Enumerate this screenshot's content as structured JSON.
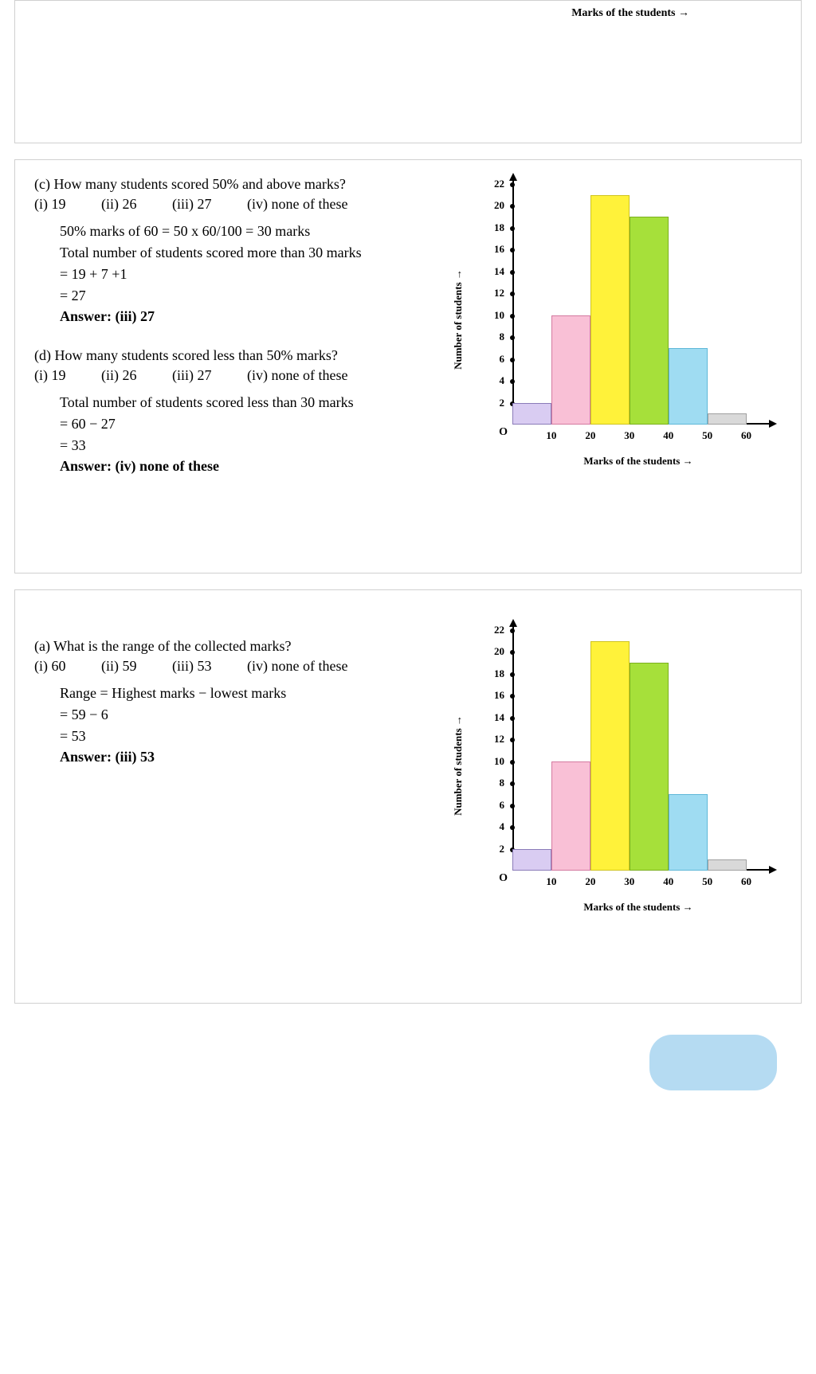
{
  "topLabel": "Marks of the students →",
  "questions": {
    "c": {
      "prompt": "(c) How many students scored 50% and above marks?",
      "options": {
        "i": "(i) 19",
        "ii": "(ii) 26",
        "iii": "(iii) 27",
        "iv": "(iv) none of these"
      },
      "workLines": {
        "l1": "50% marks of 60 = 50 x 60/100 = 30 marks",
        "l2": "Total number of students scored more than 30 marks",
        "l3": "= 19 + 7 +1",
        "l4": "= 27"
      },
      "answer": "Answer: (iii) 27"
    },
    "d": {
      "prompt": "(d) How many students scored less than 50% marks?",
      "options": {
        "i": "(i) 19",
        "ii": "(ii) 26",
        "iii": "(iii) 27",
        "iv": "(iv) none of these"
      },
      "workLines": {
        "l1": "Total number of students scored less than 30 marks",
        "l2": "= 60 − 27",
        "l3": "= 33"
      },
      "answer": "Answer: (iv) none of these"
    },
    "a": {
      "prompt": "(a) What is the range of the collected marks?",
      "options": {
        "i": "(i) 60",
        "ii": "(ii) 59",
        "iii": "(iii) 53",
        "iv": "(iv) none of these"
      },
      "workLines": {
        "l1": "Range = Highest marks − lowest marks",
        "l2": "= 59 − 6",
        "l3": "= 53"
      },
      "answer": "Answer: (iii) 53"
    }
  },
  "chart": {
    "type": "bar",
    "yLabel": "Number of students →",
    "xLabel": "Marks of the students →",
    "yMax": 22,
    "yTicks": [
      2,
      4,
      6,
      8,
      10,
      12,
      14,
      16,
      18,
      20,
      22
    ],
    "xTicks": [
      10,
      20,
      30,
      40,
      50,
      60
    ],
    "xMax": 65,
    "barWidthUnits": 10,
    "bars": [
      {
        "xStart": 0,
        "value": 2,
        "color": "#d9ccf2",
        "border": "#8a7bb8"
      },
      {
        "xStart": 10,
        "value": 10,
        "color": "#f9c0d6",
        "border": "#d47aa0"
      },
      {
        "xStart": 20,
        "value": 21,
        "color": "#fff23a",
        "border": "#cfc41f"
      },
      {
        "xStart": 30,
        "value": 19,
        "color": "#a6e03a",
        "border": "#7bb01e"
      },
      {
        "xStart": 40,
        "value": 7,
        "color": "#9fdcf2",
        "border": "#5fb8d8"
      },
      {
        "xStart": 50,
        "value": 1,
        "color": "#d9d9d9",
        "border": "#a0a0a0"
      }
    ],
    "originLabel": "O",
    "axisColor": "#000000",
    "background": "#ffffff",
    "tickFontSize": 13
  }
}
